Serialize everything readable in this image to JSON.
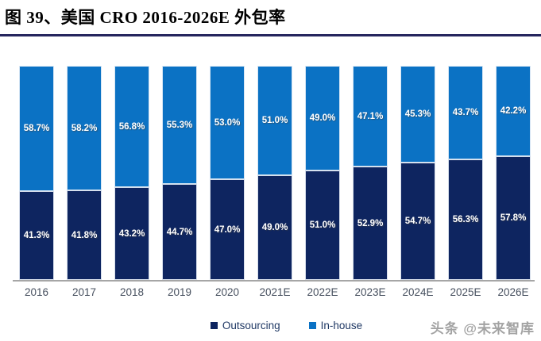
{
  "header": {
    "title": "图 39、美国 CRO 2016-2026E 外包率"
  },
  "chart_data": {
    "type": "bar",
    "stacked": true,
    "categories": [
      "2016",
      "2017",
      "2018",
      "2019",
      "2020",
      "2021E",
      "2022E",
      "2023E",
      "2024E",
      "2025E",
      "2026E"
    ],
    "series": [
      {
        "name": "Outsourcing",
        "position": "bottom",
        "color": "#0e2560",
        "values": [
          41.3,
          41.8,
          43.2,
          44.7,
          47.0,
          49.0,
          51.0,
          52.9,
          54.7,
          56.3,
          57.8
        ],
        "labels": [
          "41.3%",
          "41.8%",
          "43.2%",
          "44.7%",
          "47.0%",
          "49.0%",
          "51.0%",
          "52.9%",
          "54.7%",
          "56.3%",
          "57.8%"
        ]
      },
      {
        "name": "In-house",
        "position": "top",
        "color": "#0b72c4",
        "values": [
          58.7,
          58.2,
          56.8,
          55.3,
          53.0,
          51.0,
          49.0,
          47.1,
          45.3,
          43.7,
          42.2
        ],
        "labels": [
          "58.7%",
          "58.2%",
          "56.8%",
          "55.3%",
          "53.0%",
          "51.0%",
          "49.0%",
          "47.1%",
          "45.3%",
          "43.7%",
          "42.2%"
        ]
      }
    ],
    "ylim": [
      0,
      100
    ],
    "grid": false,
    "legend_position": "bottom",
    "value_label_color": "#ffffff"
  },
  "watermark": {
    "text": "头条 @未来智库",
    "color": "#a3a3a3"
  },
  "styles": {
    "accent_rule": "#26265e",
    "axis_line": "#a6a6a6",
    "tick_label_color": "#47505f",
    "legend_text_color": "#1f3864"
  }
}
